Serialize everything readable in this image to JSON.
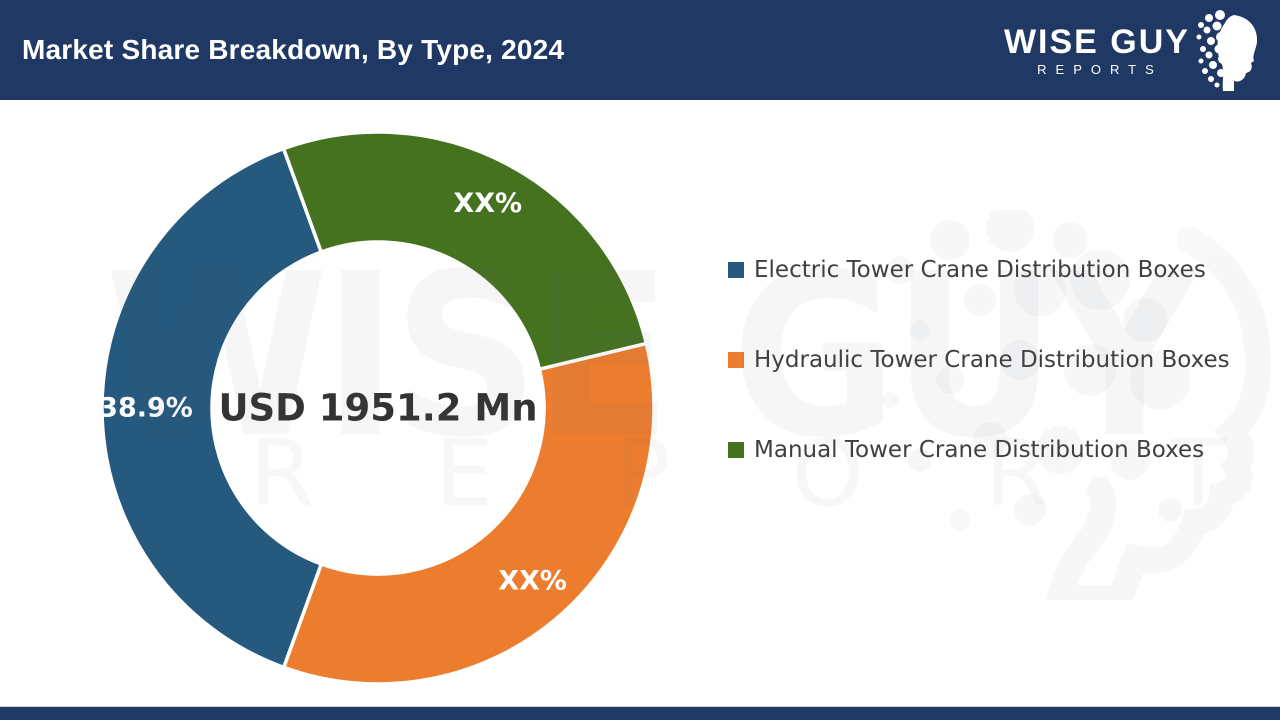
{
  "header": {
    "title": "Market Share Breakdown, By Type, 2024",
    "logo_line1": "WISE GUY",
    "logo_line2": "REPORTS"
  },
  "chart_data": {
    "type": "pie",
    "subtype": "donut",
    "title": "Market Share Breakdown, By Type, 2024",
    "center_label": "USD 1951.2 Mn",
    "start_angle_deg": 110,
    "direction": "counterclockwise",
    "legend_position": "right",
    "segments": [
      {
        "label": "Electric Tower Crane Distribution Boxes",
        "value_pct": 38.9,
        "display_label": "38.9%",
        "color": "#25597E"
      },
      {
        "label": "Hydraulic Tower Crane Distribution Boxes",
        "value_pct": 34.3,
        "display_label": "XX%",
        "color": "#EC7D2E"
      },
      {
        "label": "Manual Tower Crane Distribution Boxes",
        "value_pct": 26.8,
        "display_label": "XX%",
        "color": "#45721F"
      }
    ]
  },
  "watermark": {
    "line1": "WISE GUY",
    "line2": "R E P O R T S"
  },
  "colors": {
    "header_bg": "#1F3864",
    "footer_bar": "#1F3864",
    "hairline": "#CFCFCF",
    "segment_gap": "#FFFFFF",
    "center_text": "#333333",
    "legend_text": "#3F3F3F"
  }
}
